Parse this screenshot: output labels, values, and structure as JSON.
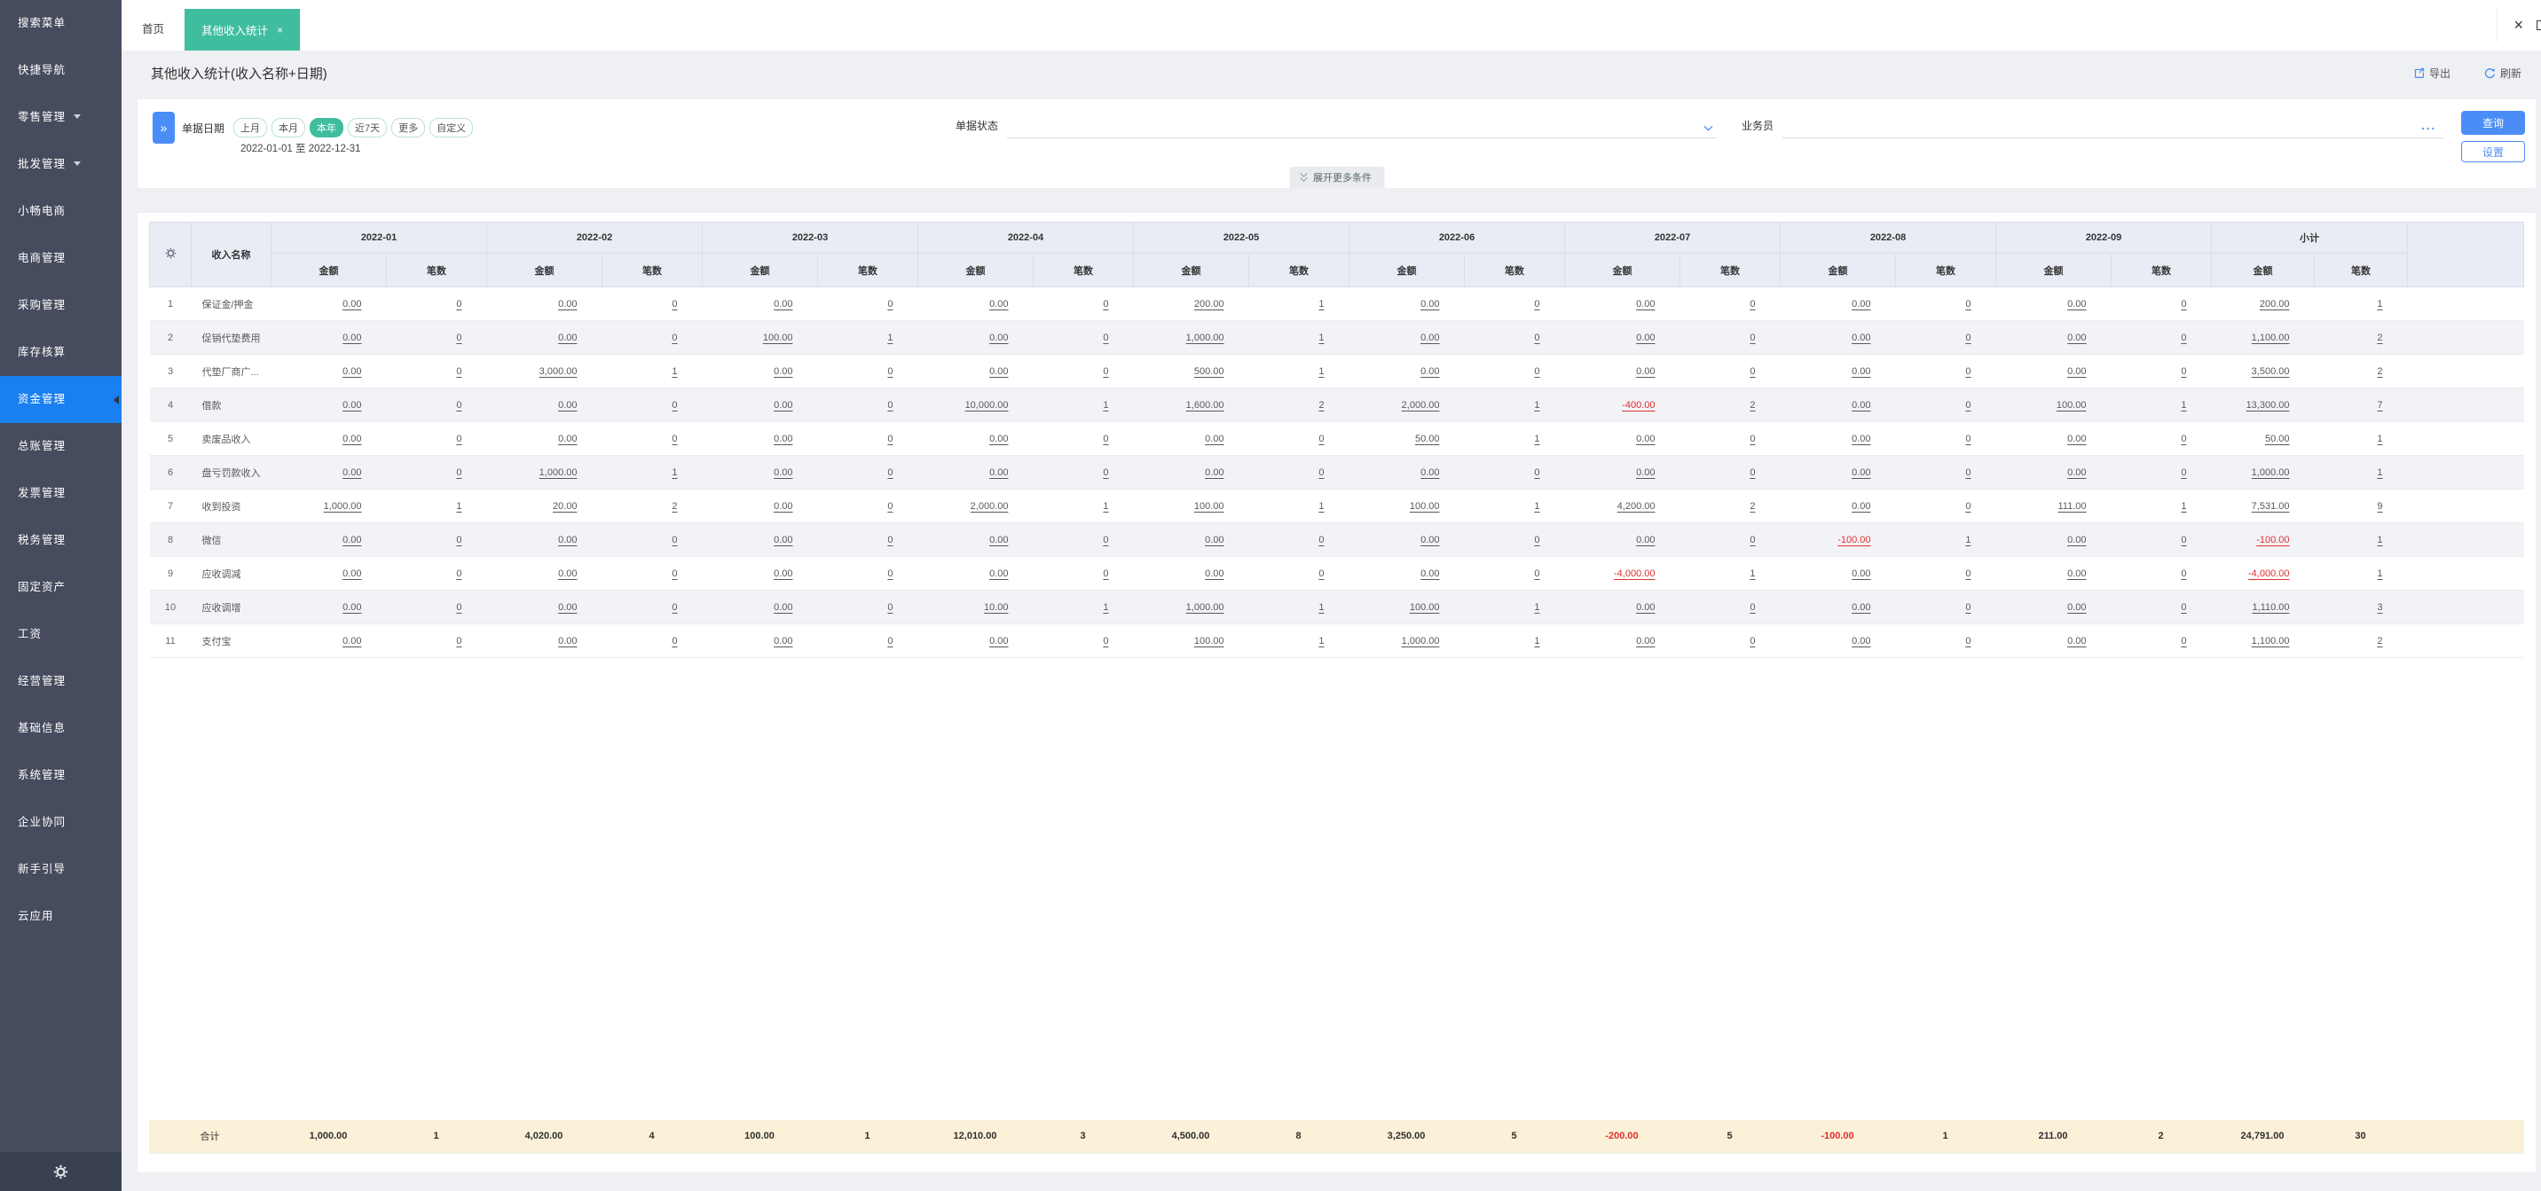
{
  "window": {
    "close_label": "×"
  },
  "sidebar": {
    "items": [
      {
        "label": "搜索菜单"
      },
      {
        "label": "快捷导航"
      },
      {
        "label": "零售管理",
        "arrow": true
      },
      {
        "label": "批发管理",
        "arrow": true
      },
      {
        "label": "小畅电商"
      },
      {
        "label": "电商管理"
      },
      {
        "label": "采购管理"
      },
      {
        "label": "库存核算"
      },
      {
        "label": "资金管理",
        "active": true
      },
      {
        "label": "总账管理"
      },
      {
        "label": "发票管理"
      },
      {
        "label": "税务管理"
      },
      {
        "label": "固定资产"
      },
      {
        "label": "工资"
      },
      {
        "label": "经营管理"
      },
      {
        "label": "基础信息"
      },
      {
        "label": "系统管理"
      },
      {
        "label": "企业协同"
      },
      {
        "label": "新手引导"
      },
      {
        "label": "云应用"
      }
    ]
  },
  "tabs": {
    "home": "首页",
    "active_tab": "其他收入统计",
    "close": "×"
  },
  "header": {
    "title": "其他收入统计(收入名称+日期)",
    "export_label": "导出",
    "refresh_label": "刷新"
  },
  "filters": {
    "date_label": "单据日期",
    "date_options": [
      "上月",
      "本月",
      "本年",
      "近7天",
      "更多",
      "自定义"
    ],
    "date_active_index": 2,
    "date_range": "2022-01-01 至 2022-12-31",
    "status_label": "单据状态",
    "status_value": "",
    "salesman_label": "业务员",
    "salesman_value": "",
    "more_label": "...",
    "query_label": "查询",
    "settings_label": "设置",
    "expand_label": "展开更多条件"
  },
  "table": {
    "name_header": "收入名称",
    "amount_header": "金额",
    "count_header": "笔数",
    "subtotal_header": "小计",
    "total_label": "合计",
    "months": [
      "2022-01",
      "2022-02",
      "2022-03",
      "2022-04",
      "2022-05",
      "2022-06",
      "2022-07",
      "2022-08",
      "2022-09"
    ],
    "rows": [
      {
        "name": "保证金/押金",
        "cells": [
          [
            "0.00",
            "0"
          ],
          [
            "0.00",
            "0"
          ],
          [
            "0.00",
            "0"
          ],
          [
            "0.00",
            "0"
          ],
          [
            "200.00",
            "1"
          ],
          [
            "0.00",
            "0"
          ],
          [
            "0.00",
            "0"
          ],
          [
            "0.00",
            "0"
          ],
          [
            "0.00",
            "0"
          ],
          [
            "200.00",
            "1"
          ]
        ]
      },
      {
        "name": "促销代垫费用",
        "cells": [
          [
            "0.00",
            "0"
          ],
          [
            "0.00",
            "0"
          ],
          [
            "100.00",
            "1"
          ],
          [
            "0.00",
            "0"
          ],
          [
            "1,000.00",
            "1"
          ],
          [
            "0.00",
            "0"
          ],
          [
            "0.00",
            "0"
          ],
          [
            "0.00",
            "0"
          ],
          [
            "0.00",
            "0"
          ],
          [
            "1,100.00",
            "2"
          ]
        ]
      },
      {
        "name": "代垫厂商广...",
        "cells": [
          [
            "0.00",
            "0"
          ],
          [
            "3,000.00",
            "1"
          ],
          [
            "0.00",
            "0"
          ],
          [
            "0.00",
            "0"
          ],
          [
            "500.00",
            "1"
          ],
          [
            "0.00",
            "0"
          ],
          [
            "0.00",
            "0"
          ],
          [
            "0.00",
            "0"
          ],
          [
            "0.00",
            "0"
          ],
          [
            "3,500.00",
            "2"
          ]
        ]
      },
      {
        "name": "借款",
        "cells": [
          [
            "0.00",
            "0"
          ],
          [
            "0.00",
            "0"
          ],
          [
            "0.00",
            "0"
          ],
          [
            "10,000.00",
            "1"
          ],
          [
            "1,600.00",
            "2"
          ],
          [
            "2,000.00",
            "1"
          ],
          [
            "-400.00",
            "2"
          ],
          [
            "0.00",
            "0"
          ],
          [
            "100.00",
            "1"
          ],
          [
            "13,300.00",
            "7"
          ]
        ]
      },
      {
        "name": "卖废品收入",
        "cells": [
          [
            "0.00",
            "0"
          ],
          [
            "0.00",
            "0"
          ],
          [
            "0.00",
            "0"
          ],
          [
            "0.00",
            "0"
          ],
          [
            "0.00",
            "0"
          ],
          [
            "50.00",
            "1"
          ],
          [
            "0.00",
            "0"
          ],
          [
            "0.00",
            "0"
          ],
          [
            "0.00",
            "0"
          ],
          [
            "50.00",
            "1"
          ]
        ]
      },
      {
        "name": "盘亏罚款收入",
        "cells": [
          [
            "0.00",
            "0"
          ],
          [
            "1,000.00",
            "1"
          ],
          [
            "0.00",
            "0"
          ],
          [
            "0.00",
            "0"
          ],
          [
            "0.00",
            "0"
          ],
          [
            "0.00",
            "0"
          ],
          [
            "0.00",
            "0"
          ],
          [
            "0.00",
            "0"
          ],
          [
            "0.00",
            "0"
          ],
          [
            "1,000.00",
            "1"
          ]
        ]
      },
      {
        "name": "收到投资",
        "cells": [
          [
            "1,000.00",
            "1"
          ],
          [
            "20.00",
            "2"
          ],
          [
            "0.00",
            "0"
          ],
          [
            "2,000.00",
            "1"
          ],
          [
            "100.00",
            "1"
          ],
          [
            "100.00",
            "1"
          ],
          [
            "4,200.00",
            "2"
          ],
          [
            "0.00",
            "0"
          ],
          [
            "111.00",
            "1"
          ],
          [
            "7,531.00",
            "9"
          ]
        ]
      },
      {
        "name": "微信",
        "cells": [
          [
            "0.00",
            "0"
          ],
          [
            "0.00",
            "0"
          ],
          [
            "0.00",
            "0"
          ],
          [
            "0.00",
            "0"
          ],
          [
            "0.00",
            "0"
          ],
          [
            "0.00",
            "0"
          ],
          [
            "0.00",
            "0"
          ],
          [
            "-100.00",
            "1"
          ],
          [
            "0.00",
            "0"
          ],
          [
            "-100.00",
            "1"
          ]
        ]
      },
      {
        "name": "应收调减",
        "cells": [
          [
            "0.00",
            "0"
          ],
          [
            "0.00",
            "0"
          ],
          [
            "0.00",
            "0"
          ],
          [
            "0.00",
            "0"
          ],
          [
            "0.00",
            "0"
          ],
          [
            "0.00",
            "0"
          ],
          [
            "-4,000.00",
            "1"
          ],
          [
            "0.00",
            "0"
          ],
          [
            "0.00",
            "0"
          ],
          [
            "-4,000.00",
            "1"
          ]
        ]
      },
      {
        "name": "应收调增",
        "cells": [
          [
            "0.00",
            "0"
          ],
          [
            "0.00",
            "0"
          ],
          [
            "0.00",
            "0"
          ],
          [
            "10.00",
            "1"
          ],
          [
            "1,000.00",
            "1"
          ],
          [
            "100.00",
            "1"
          ],
          [
            "0.00",
            "0"
          ],
          [
            "0.00",
            "0"
          ],
          [
            "0.00",
            "0"
          ],
          [
            "1,110.00",
            "3"
          ]
        ]
      },
      {
        "name": "支付宝",
        "cells": [
          [
            "0.00",
            "0"
          ],
          [
            "0.00",
            "0"
          ],
          [
            "0.00",
            "0"
          ],
          [
            "0.00",
            "0"
          ],
          [
            "100.00",
            "1"
          ],
          [
            "1,000.00",
            "1"
          ],
          [
            "0.00",
            "0"
          ],
          [
            "0.00",
            "0"
          ],
          [
            "0.00",
            "0"
          ],
          [
            "1,100.00",
            "2"
          ]
        ]
      }
    ],
    "totals": [
      [
        "1,000.00",
        "1"
      ],
      [
        "4,020.00",
        "4"
      ],
      [
        "100.00",
        "1"
      ],
      [
        "12,010.00",
        "3"
      ],
      [
        "4,500.00",
        "8"
      ],
      [
        "3,250.00",
        "5"
      ],
      [
        "-200.00",
        "5"
      ],
      [
        "-100.00",
        "1"
      ],
      [
        "211.00",
        "2"
      ],
      [
        "24,791.00",
        "30"
      ]
    ]
  },
  "colors": {
    "sidebar_bg": "#464c5e",
    "active_menu_blue": "#1a7ff0",
    "tab_green": "#40bd9f",
    "accent_blue": "#4a8df6",
    "negative_red": "#e02e2e",
    "total_row_bg": "#fbf1d8",
    "header_row_bg": "#e9ecf4"
  }
}
